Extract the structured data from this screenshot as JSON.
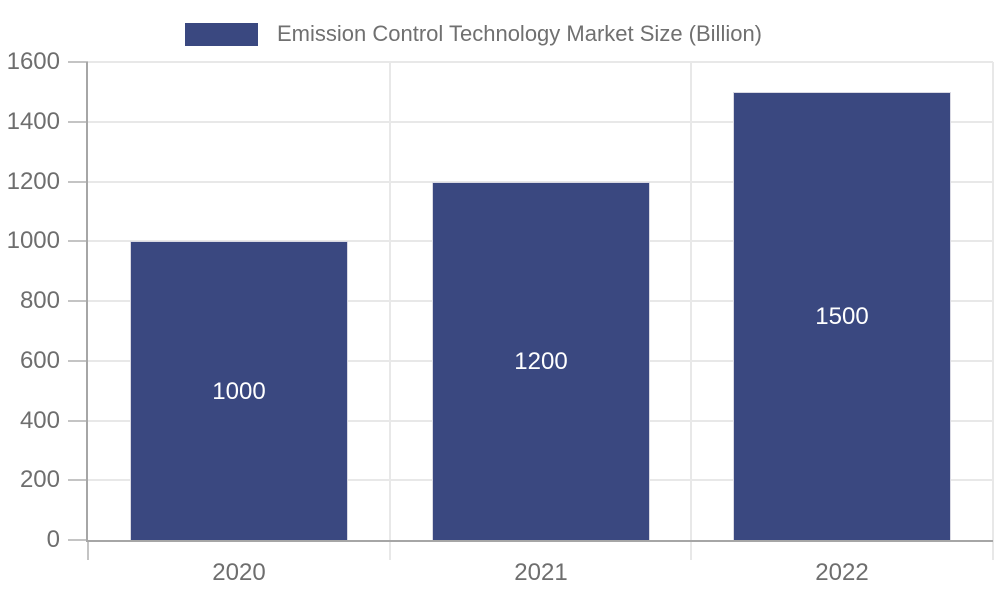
{
  "chart_data": {
    "type": "bar",
    "title": "",
    "legend": [
      "Emission Control Technology Market Size (Billion)"
    ],
    "legend_position": "top",
    "categories": [
      "2020",
      "2021",
      "2022"
    ],
    "values": [
      1000,
      1200,
      1500
    ],
    "bar_labels": [
      "1000",
      "1200",
      "1500"
    ],
    "ylim": [
      0,
      1600
    ],
    "ytick_interval": 200,
    "ytick_labels": [
      "0",
      "200",
      "400",
      "600",
      "800",
      "1000",
      "1200",
      "1400",
      "1600"
    ],
    "grid": true,
    "bar_value_labels_inside": true,
    "colors": {
      "bar": "#3A4880",
      "bar_border": "#D9D9E3",
      "axis_line": "#A6A6A6",
      "tick": "#C4C4C4",
      "gridline": "#E8E8E8",
      "axis_label": "#6E6E6E",
      "legend_text": "#707070",
      "bar_value_text": "#FFFFFF",
      "background": "#FFFFFF"
    }
  }
}
